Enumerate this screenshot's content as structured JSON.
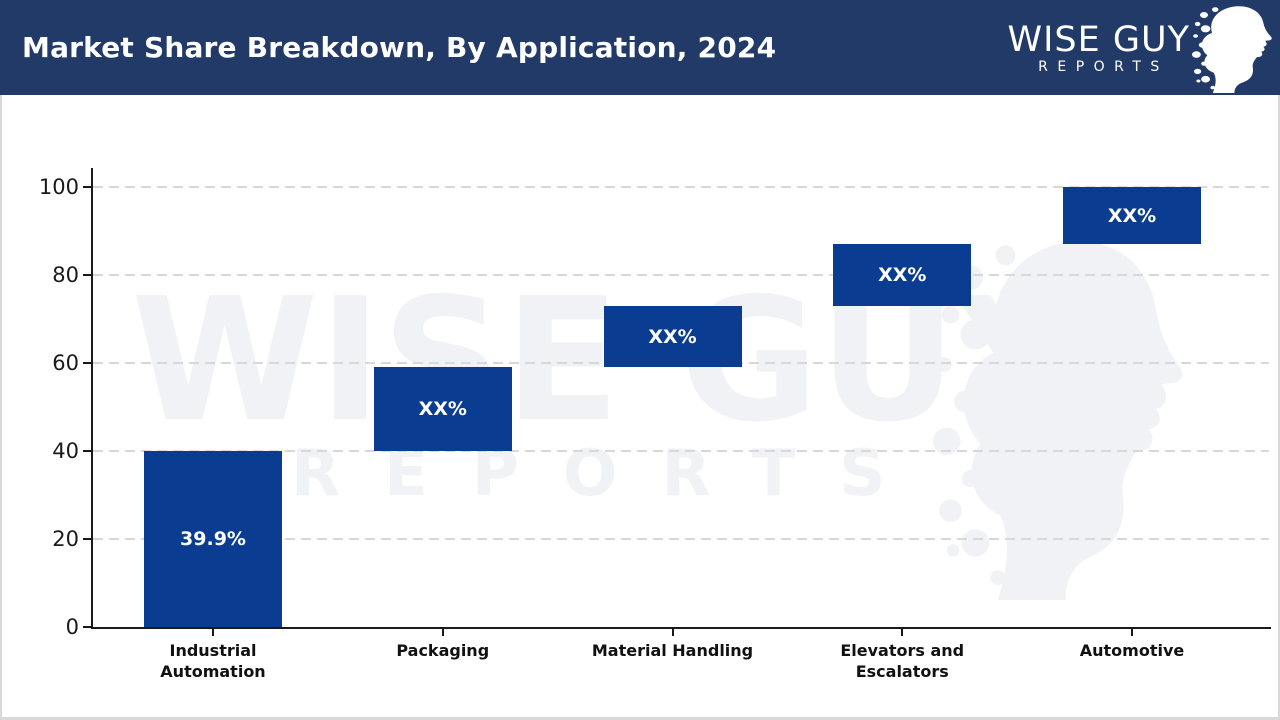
{
  "header": {
    "title": "Market Share Breakdown, By Application, 2024",
    "logo": {
      "line1": "WISE GUY",
      "line2": "REPORTS"
    }
  },
  "watermark": {
    "line1": "WISE GUY",
    "line2": "REPORTS"
  },
  "chart_data": {
    "type": "bar",
    "subtype": "waterfall",
    "title": "Market Share Breakdown, By Application, 2024",
    "categories": [
      [
        "Industrial",
        "Automation"
      ],
      [
        "Packaging"
      ],
      [
        "Material Handling"
      ],
      [
        "Elevators and",
        "Escalators"
      ],
      [
        "Automotive"
      ]
    ],
    "bars": [
      {
        "start": 0,
        "end": 39.9,
        "label": "39.9%"
      },
      {
        "start": 39.9,
        "end": 59,
        "label": "XX%"
      },
      {
        "start": 59,
        "end": 73,
        "label": "XX%"
      },
      {
        "start": 73,
        "end": 87,
        "label": "XX%"
      },
      {
        "start": 87,
        "end": 100,
        "label": "XX%"
      }
    ],
    "ylabel": "",
    "xlabel": "",
    "yticks": [
      0,
      20,
      40,
      60,
      80,
      100
    ],
    "ylim": [
      0,
      104
    ],
    "bar_color": "#0a3d91",
    "grid": {
      "show": true,
      "style": "dashed",
      "color": "#d8d8d8",
      "orientation": "horizontal"
    },
    "legend": null,
    "colors": {
      "header_background": "#223a67",
      "title_text": "#ffffff",
      "axis": "#1a1a1a",
      "watermark": "#f1f2f5"
    }
  }
}
